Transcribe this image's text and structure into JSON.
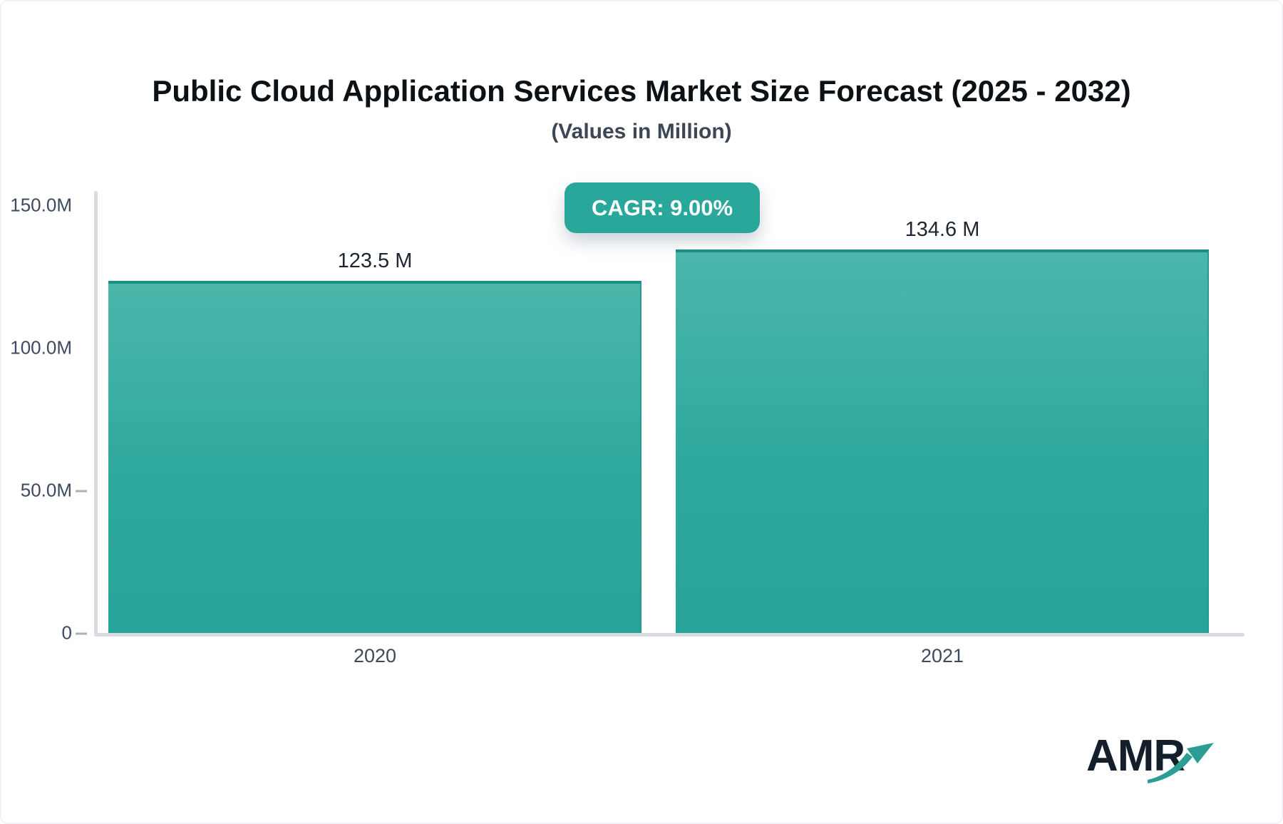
{
  "title": "Public Cloud Application Services Market Size Forecast (2025 - 2032)",
  "subtitle": "(Values in Million)",
  "cagr_badge": "CAGR: 9.00%",
  "logo": {
    "text": "AMR"
  },
  "colors": {
    "accent_teal": "#2aa79b",
    "bar_gradient_top": "#4cb6ab",
    "bar_gradient_bottom": "#28a399",
    "bar_top_border": "#1a8e84",
    "axis_line": "#d7dbe2",
    "axis_text": "#3e4a5e",
    "value_text": "#1c2733",
    "title_text": "#0c1116",
    "subtitle_text": "#3b4754",
    "badge_text": "#ffffff",
    "logo_text": "#141f2b",
    "logo_arrow": "#2b9d92"
  },
  "chart_data": {
    "type": "bar",
    "title": "Public Cloud Application Services Market Size Forecast (2025 - 2032)",
    "subtitle": "(Values in Million)",
    "annotation": "CAGR: 9.00%",
    "categories": [
      "2020",
      "2021"
    ],
    "values": [
      123.5,
      134.6
    ],
    "value_labels": [
      "123.5 M",
      "134.6 M"
    ],
    "unit": "Million",
    "xlabel": "",
    "ylabel": "",
    "ylim": [
      0,
      150
    ],
    "yticks": [
      {
        "label": "0",
        "value": 0,
        "dash": true
      },
      {
        "label": "50.0M",
        "value": 50,
        "dash": true
      },
      {
        "label": "100.0M",
        "value": 100,
        "dash": false
      },
      {
        "label": "150.0M",
        "value": 150,
        "dash": false
      }
    ],
    "grid": false,
    "legend": false,
    "bar_color": "#2aa79b"
  }
}
